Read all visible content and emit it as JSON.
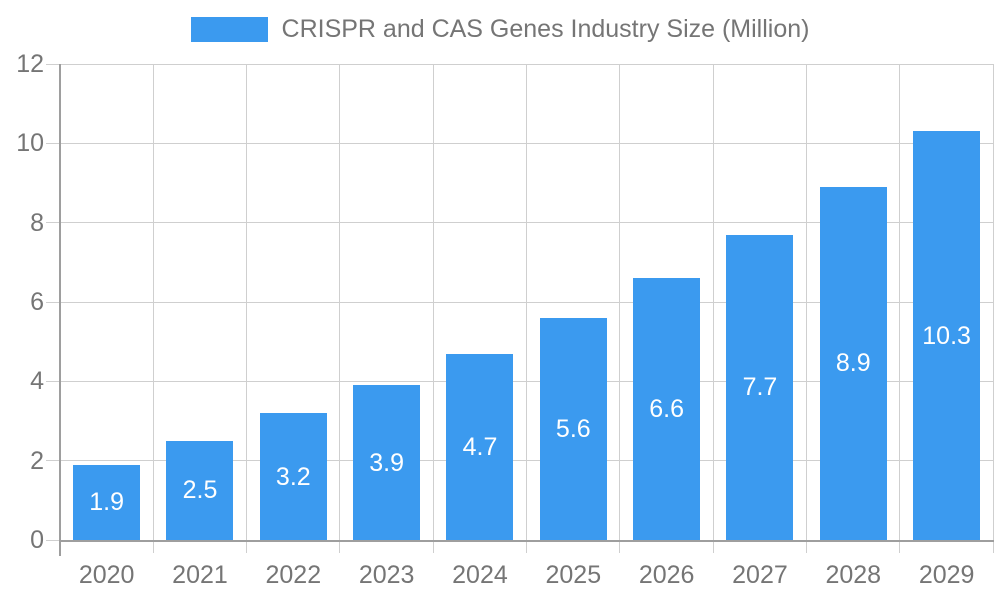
{
  "legend": {
    "label": "CRISPR and CAS Genes Industry Size (Million)"
  },
  "colors": {
    "bar": "#3B9AEF",
    "grid": "#CFCFCF",
    "axis": "#9E9E9E",
    "text": "#757575",
    "bar_label": "#FFFFFF",
    "background": "#FFFFFF"
  },
  "chart_data": {
    "type": "bar",
    "title": "CRISPR and CAS Genes Industry Size (Million)",
    "categories": [
      "2020",
      "2021",
      "2022",
      "2023",
      "2024",
      "2025",
      "2026",
      "2027",
      "2028",
      "2029"
    ],
    "values": [
      1.9,
      2.5,
      3.2,
      3.9,
      4.7,
      5.6,
      6.6,
      7.7,
      8.9,
      10.3
    ],
    "bar_value_labels": [
      "1.9",
      "2.5",
      "3.2",
      "3.9",
      "4.7",
      "5.6",
      "6.6",
      "7.7",
      "8.9",
      "10.3"
    ],
    "xlabel": "",
    "ylabel": "",
    "ylim": [
      0,
      12
    ],
    "yticks": [
      0,
      2,
      4,
      6,
      8,
      10,
      12
    ],
    "grid": true,
    "grid_vertical": true,
    "legend_position": "top-center",
    "value_labels_inside_bars": true
  }
}
